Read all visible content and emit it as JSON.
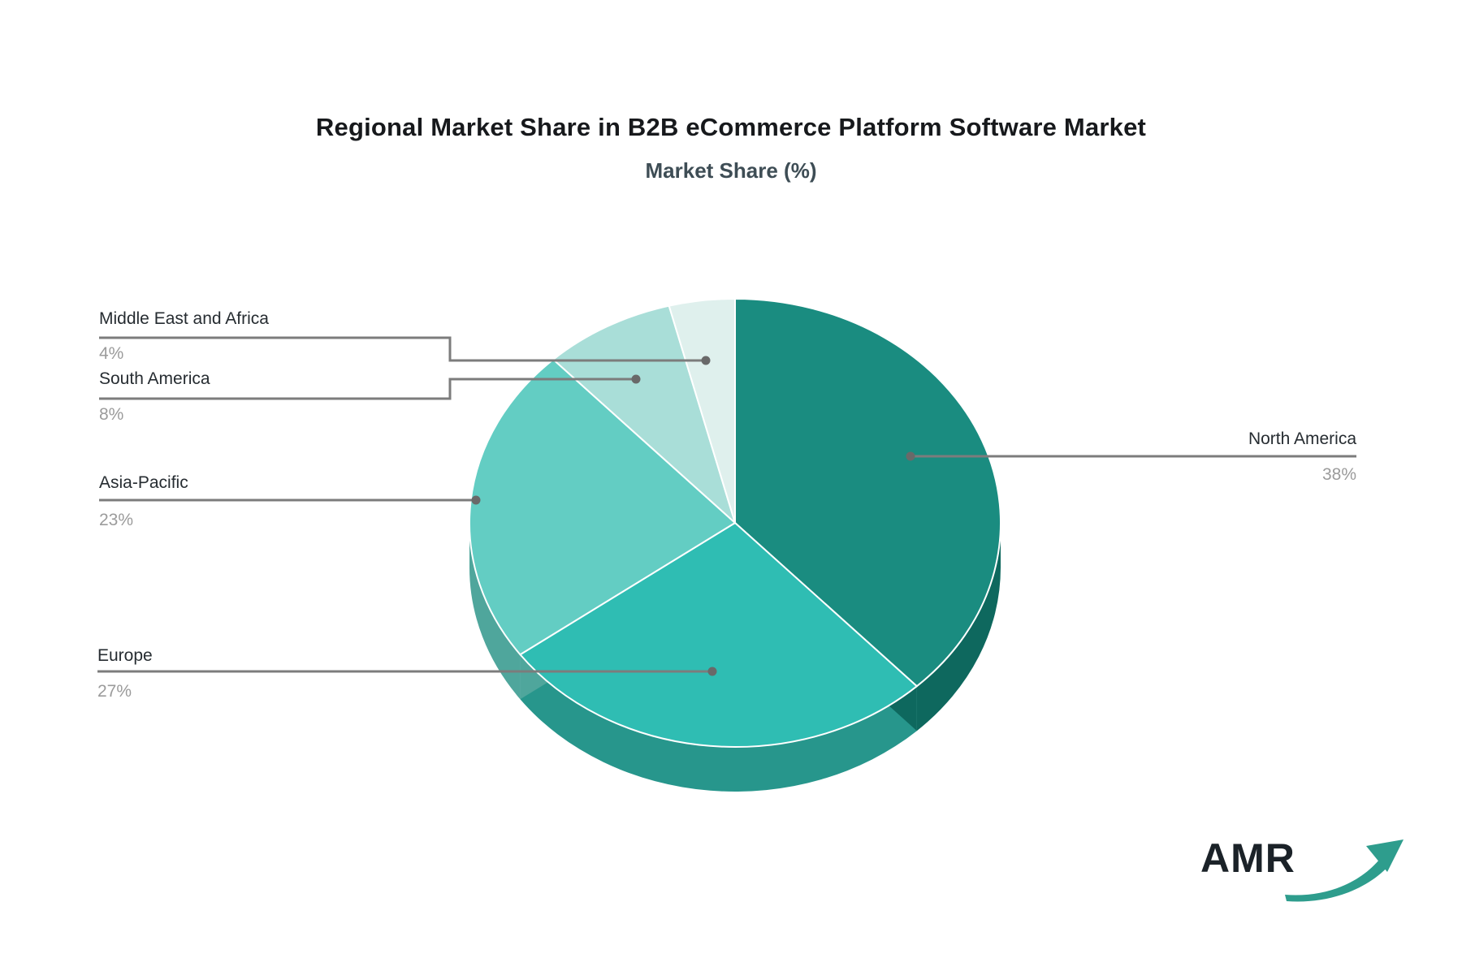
{
  "title": "Regional Market Share in B2B eCommerce Platform Software Market",
  "subtitle": "Market Share (%)",
  "logo": {
    "text": "AMR"
  },
  "colors": {
    "leader_line": "#7c7c7c",
    "dot": "#696969",
    "label_text": "#262c31",
    "value_text": "#9b9b9b",
    "title_text": "#17191c",
    "subtitle_text": "#3e4d55",
    "logo_text": "#1b2228",
    "logo_arrow": "#2e9d8d"
  },
  "chart_data": {
    "type": "pie",
    "title": "Regional Market Share in B2B eCommerce Platform Software Market",
    "subtitle": "Market Share (%)",
    "unit": "%",
    "start_angle": "12-oclock",
    "direction": "clockwise",
    "effect_3d": true,
    "legend_position": "callout-labels",
    "slices": [
      {
        "label": "North America",
        "value": 38,
        "display": "38%",
        "color": "#1a8c80",
        "side_color": "#0e685e"
      },
      {
        "label": "Europe",
        "value": 27,
        "display": "27%",
        "color": "#2fbdb3",
        "side_color": "#27968c"
      },
      {
        "label": "Asia-Pacific",
        "value": 23,
        "display": "23%",
        "color": "#63cdc3",
        "side_color": "#4fa69c"
      },
      {
        "label": "South America",
        "value": 8,
        "display": "8%",
        "color": "#a9ded8",
        "side_color": "#8cc8c1"
      },
      {
        "label": "Middle East and Africa",
        "value": 4,
        "display": "4%",
        "color": "#dff0ed",
        "side_color": "#bcd9d4"
      }
    ]
  }
}
